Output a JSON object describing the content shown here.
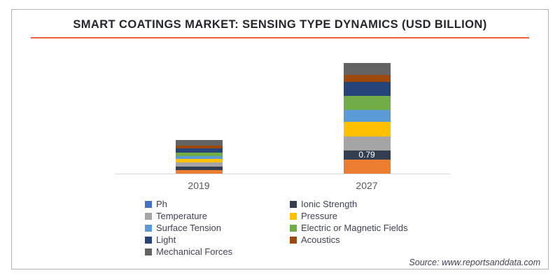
{
  "header": {
    "title": "SMART COATINGS MARKET: SENSING TYPE DYNAMICS (USD BILLION)"
  },
  "chart_data": {
    "type": "bar",
    "stacked": true,
    "title": "SMART COATINGS MARKET: SENSING TYPE DYNAMICS (USD BILLION)",
    "unit": "USD Billion",
    "categories": [
      "2019",
      "2027"
    ],
    "series": [
      {
        "name": "Ph",
        "bar_color": "#ED7D31",
        "legend_color": "#4472C4",
        "values": [
          0.32,
          1.22
        ]
      },
      {
        "name": "Ionic Strength",
        "bar_color": "#333F50",
        "legend_color": "#333F50",
        "values": [
          0.29,
          0.79
        ],
        "data_labels": [
          null,
          "0.79"
        ]
      },
      {
        "name": "Temperature",
        "bar_color": "#A5A5A5",
        "legend_color": "#A5A5A5",
        "values": [
          0.35,
          1.22
        ]
      },
      {
        "name": "Pressure",
        "bar_color": "#FFC000",
        "legend_color": "#FFC000",
        "values": [
          0.34,
          1.28
        ]
      },
      {
        "name": "Surface Tension",
        "bar_color": "#5B9BD5",
        "legend_color": "#5B9BD5",
        "values": [
          0.24,
          1.03
        ]
      },
      {
        "name": "Electric or Magnetic Fields",
        "bar_color": "#70AD47",
        "legend_color": "#70AD47",
        "values": [
          0.29,
          1.16
        ]
      },
      {
        "name": "Light",
        "bar_color": "#264478",
        "legend_color": "#264478",
        "values": [
          0.35,
          1.22
        ]
      },
      {
        "name": "Acoustics",
        "bar_color": "#9E480E",
        "legend_color": "#9E480E",
        "values": [
          0.26,
          0.61
        ]
      },
      {
        "name": "Mechanical Forces",
        "bar_color": "#636363",
        "legend_color": "#636363",
        "values": [
          0.44,
          1.03
        ]
      }
    ],
    "legend_position": "bottom-two-columns",
    "grid": false,
    "y_axis_visible": false,
    "baseline_color": "#D9D9D9",
    "accent_divider_color": "#F0633A"
  },
  "source": {
    "text": "Source: www.reportsanddata.com"
  }
}
